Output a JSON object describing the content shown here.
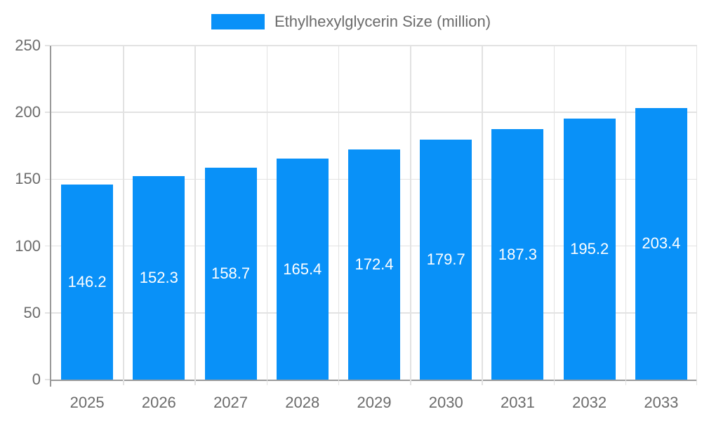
{
  "chart_data": {
    "type": "bar",
    "title": "",
    "legend": "Ethylhexylglycerin Size (million)",
    "legend_position": "top",
    "categories": [
      "2025",
      "2026",
      "2027",
      "2028",
      "2029",
      "2030",
      "2031",
      "2032",
      "2033"
    ],
    "series": [
      {
        "name": "Ethylhexylglycerin Size (million)",
        "values": [
          146.2,
          152.3,
          158.7,
          165.4,
          172.4,
          179.7,
          187.3,
          195.2,
          203.4
        ]
      }
    ],
    "xlabel": "",
    "ylabel": "",
    "ylim": [
      0,
      250
    ],
    "yticks": [
      0,
      50,
      100,
      150,
      200,
      250
    ],
    "grid": true,
    "bar_color": "#0991f8",
    "value_label_color": "#ffffff",
    "axis_text_color": "#6b6b6b",
    "grid_color": "#e2e2e2",
    "axis_line_color": "#9a9a9a"
  }
}
